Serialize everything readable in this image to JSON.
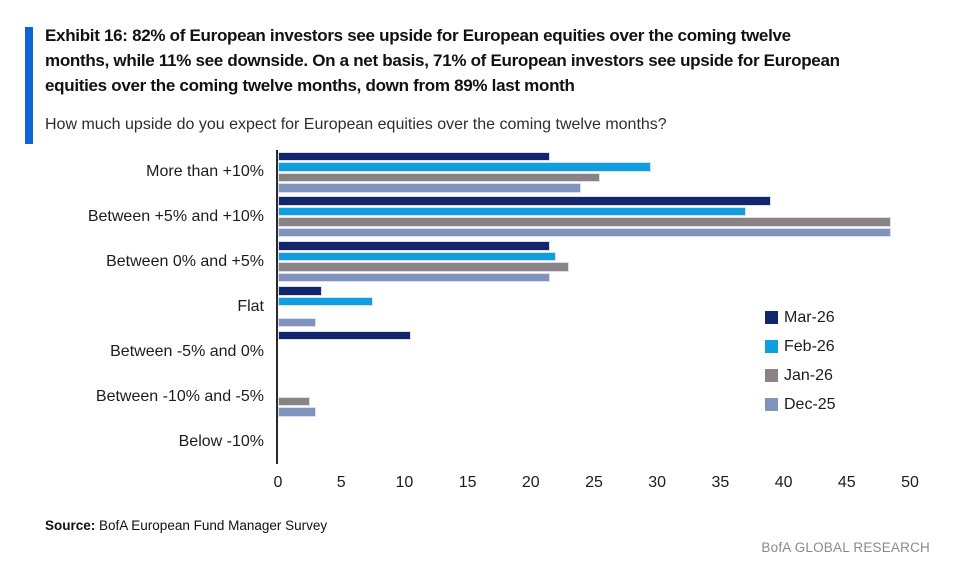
{
  "header": {
    "accent_color": "#0C62D6",
    "title_lines": [
      "Exhibit 16: 82% of European investors see upside for European equities over the coming twelve",
      "months, while 11% see downside. On a net basis, 71% of European investors see upside for European",
      "equities over the coming twelve months, down from 89% last month"
    ],
    "subtitle": "How much upside do you expect for European equities over the coming twelve months?"
  },
  "chart_data": {
    "type": "bar",
    "orientation": "horizontal",
    "title": "Exhibit 16",
    "categories": [
      "More than +10%",
      "Between +5% and +10%",
      "Between 0% and +5%",
      "Flat",
      "Between -5% and 0%",
      "Between -10% and -5%",
      "Below -10%"
    ],
    "series": [
      {
        "name": "Mar-26",
        "color": "#12266B",
        "values": [
          21.5,
          39,
          21.5,
          3.5,
          10.5,
          0,
          0
        ]
      },
      {
        "name": "Feb-26",
        "color": "#0D9FE0",
        "values": [
          29.5,
          37,
          22,
          7.5,
          0,
          0,
          0
        ]
      },
      {
        "name": "Jan-26",
        "color": "#8B8285",
        "values": [
          25.5,
          48.5,
          23,
          0,
          0,
          2.5,
          0
        ]
      },
      {
        "name": "Dec-25",
        "color": "#8093BC",
        "values": [
          24,
          48.5,
          21.5,
          3,
          0,
          3,
          0
        ]
      }
    ],
    "xlim": [
      0,
      50
    ],
    "x_ticks": [
      0,
      5,
      10,
      15,
      20,
      25,
      30,
      35,
      40,
      45,
      50
    ],
    "grid": false,
    "legend_position": "right-middle",
    "axis_color": "#2a2a2a"
  },
  "footer": {
    "source_label": "Source:",
    "source_text": " BofA European Fund Manager Survey",
    "brand": "BofA GLOBAL RESEARCH"
  }
}
